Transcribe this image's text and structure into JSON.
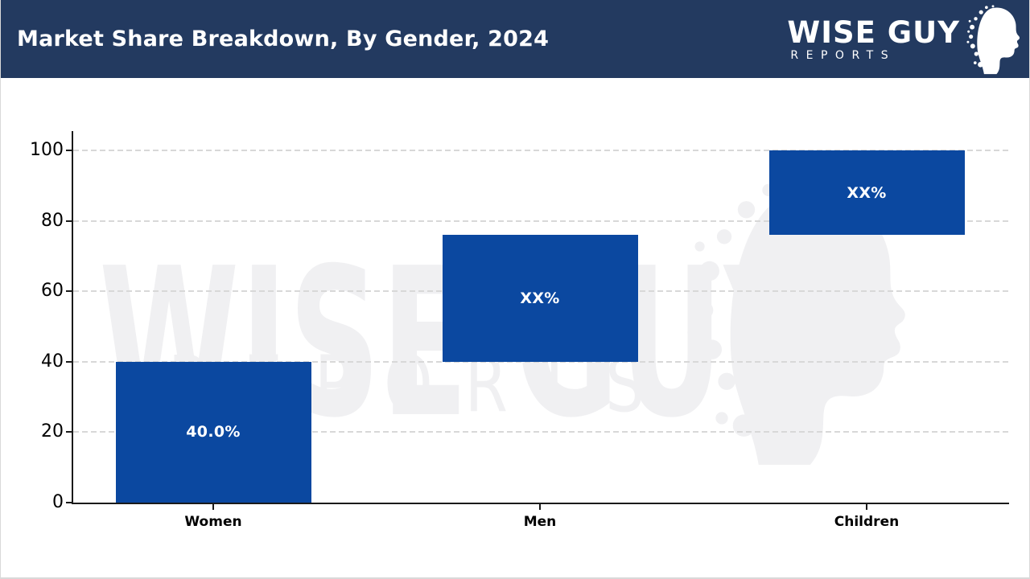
{
  "header": {
    "title": "Market Share Breakdown, By Gender, 2024",
    "logo": {
      "line1": "WISE GUY",
      "line2": "REPORTS"
    }
  },
  "watermark": {
    "line1": "WISE GUY",
    "line2": "REPORTS"
  },
  "chart_data": {
    "type": "bar",
    "subtype": "waterfall",
    "title": "Market Share Breakdown, By Gender, 2024",
    "categories": [
      "Women",
      "Men",
      "Children"
    ],
    "segments": [
      {
        "category": "Women",
        "start": 0,
        "end": 40,
        "label": "40.0%"
      },
      {
        "category": "Men",
        "start": 40,
        "end": 76,
        "label": "XX%"
      },
      {
        "category": "Children",
        "start": 76,
        "end": 100,
        "label": "XX%"
      }
    ],
    "ylim": [
      0,
      100
    ],
    "yticks": [
      0,
      20,
      40,
      60,
      80,
      100
    ],
    "xlabel": "",
    "ylabel": "",
    "grid": "horizontal-dashed",
    "legend": "none",
    "bar_color": "#0b48a0",
    "bar_label_color": "#ffffff"
  },
  "colors": {
    "header_bg": "#233a60",
    "bar": "#0b48a0",
    "grid": "#d8d8d8",
    "axis": "#1a1a1a",
    "watermark": "#f0f0f2"
  }
}
